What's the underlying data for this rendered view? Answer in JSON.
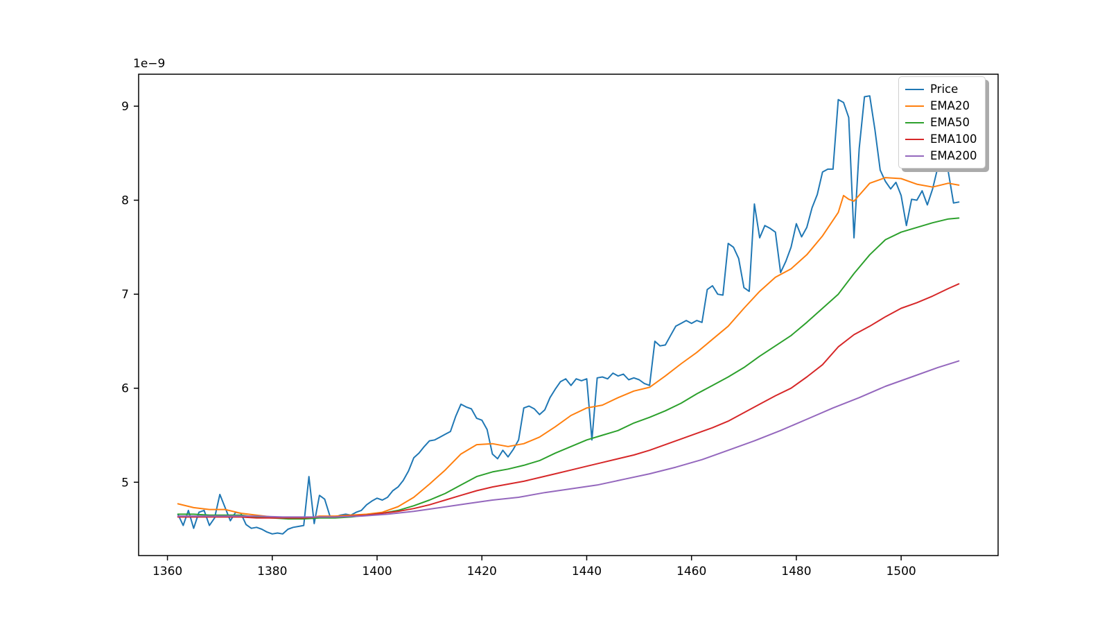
{
  "chart_data": {
    "type": "line",
    "title": "",
    "xlabel": "",
    "ylabel": "",
    "y_offset_text": "1e−9",
    "y_unit_scale": "1e-9",
    "grid": false,
    "xlim": [
      1354.5,
      1518.5
    ],
    "ylim": [
      4.22,
      9.34
    ],
    "xticks": [
      1360,
      1380,
      1400,
      1420,
      1440,
      1460,
      1480,
      1500
    ],
    "yticks": [
      5,
      6,
      7,
      8,
      9
    ],
    "legend": {
      "position": "upper right",
      "shadow": true
    },
    "series": [
      {
        "name": "Price",
        "color": "#1f77b4",
        "x_start": 1362,
        "x_step": 1,
        "y": [
          4.66,
          4.54,
          4.7,
          4.51,
          4.68,
          4.7,
          4.54,
          4.62,
          4.87,
          4.73,
          4.59,
          4.68,
          4.67,
          4.55,
          4.51,
          4.52,
          4.5,
          4.47,
          4.45,
          4.46,
          4.45,
          4.5,
          4.52,
          4.53,
          4.54,
          5.06,
          4.56,
          4.86,
          4.82,
          4.64,
          4.63,
          4.65,
          4.66,
          4.65,
          4.68,
          4.7,
          4.76,
          4.8,
          4.83,
          4.81,
          4.84,
          4.91,
          4.95,
          5.02,
          5.12,
          5.26,
          5.31,
          5.38,
          5.44,
          5.45,
          5.48,
          5.51,
          5.54,
          5.7,
          5.83,
          5.8,
          5.78,
          5.68,
          5.66,
          5.56,
          5.3,
          5.25,
          5.34,
          5.27,
          5.35,
          5.45,
          5.79,
          5.81,
          5.78,
          5.72,
          5.77,
          5.9,
          5.99,
          6.07,
          6.1,
          6.03,
          6.1,
          6.08,
          6.1,
          5.45,
          6.11,
          6.12,
          6.1,
          6.16,
          6.13,
          6.15,
          6.09,
          6.11,
          6.09,
          6.05,
          6.03,
          6.5,
          6.45,
          6.46,
          6.56,
          6.66,
          6.69,
          6.72,
          6.69,
          6.72,
          6.7,
          7.05,
          7.09,
          7.0,
          6.99,
          7.54,
          7.5,
          7.38,
          7.07,
          7.03,
          7.96,
          7.6,
          7.73,
          7.7,
          7.66,
          7.23,
          7.35,
          7.5,
          7.75,
          7.61,
          7.71,
          7.92,
          8.06,
          8.3,
          8.33,
          8.33,
          9.07,
          9.04,
          8.88,
          7.6,
          8.55,
          9.1,
          9.11,
          8.75,
          8.32,
          8.2,
          8.12,
          8.19,
          8.05,
          7.73,
          8.01,
          8.0,
          8.1,
          7.95,
          8.12,
          8.35,
          8.48,
          8.3,
          7.97,
          7.98
        ]
      },
      {
        "name": "EMA20",
        "color": "#ff7f0e",
        "x": [
          1362,
          1365,
          1368,
          1371,
          1374,
          1377,
          1380,
          1383,
          1386,
          1389,
          1392,
          1395,
          1398,
          1401,
          1404,
          1407,
          1410,
          1413,
          1416,
          1419,
          1422,
          1425,
          1428,
          1431,
          1434,
          1437,
          1440,
          1443,
          1446,
          1449,
          1452,
          1455,
          1458,
          1461,
          1464,
          1467,
          1470,
          1473,
          1476,
          1479,
          1482,
          1485,
          1488,
          1489,
          1490,
          1491,
          1494,
          1497,
          1500,
          1503,
          1506,
          1509,
          1511
        ],
        "y": [
          4.77,
          4.73,
          4.71,
          4.71,
          4.67,
          4.65,
          4.63,
          4.61,
          4.61,
          4.64,
          4.64,
          4.65,
          4.66,
          4.68,
          4.74,
          4.84,
          4.98,
          5.13,
          5.3,
          5.4,
          5.41,
          5.38,
          5.41,
          5.48,
          5.59,
          5.71,
          5.79,
          5.82,
          5.9,
          5.97,
          6.01,
          6.13,
          6.26,
          6.38,
          6.52,
          6.66,
          6.85,
          7.03,
          7.18,
          7.27,
          7.42,
          7.62,
          7.87,
          8.05,
          8.01,
          7.99,
          8.18,
          8.24,
          8.23,
          8.17,
          8.14,
          8.18,
          8.16
        ]
      },
      {
        "name": "EMA50",
        "color": "#2ca02c",
        "x": [
          1362,
          1365,
          1368,
          1371,
          1374,
          1377,
          1380,
          1383,
          1386,
          1389,
          1392,
          1395,
          1398,
          1401,
          1404,
          1407,
          1410,
          1413,
          1416,
          1419,
          1422,
          1425,
          1428,
          1431,
          1434,
          1437,
          1440,
          1443,
          1446,
          1449,
          1452,
          1455,
          1458,
          1461,
          1464,
          1467,
          1470,
          1473,
          1476,
          1479,
          1482,
          1485,
          1488,
          1491,
          1494,
          1497,
          1500,
          1503,
          1506,
          1509,
          1511
        ],
        "y": [
          4.66,
          4.66,
          4.65,
          4.65,
          4.65,
          4.63,
          4.62,
          4.61,
          4.61,
          4.62,
          4.62,
          4.63,
          4.65,
          4.67,
          4.7,
          4.75,
          4.81,
          4.88,
          4.97,
          5.06,
          5.11,
          5.14,
          5.18,
          5.23,
          5.31,
          5.38,
          5.45,
          5.5,
          5.55,
          5.63,
          5.69,
          5.76,
          5.84,
          5.94,
          6.03,
          6.12,
          6.22,
          6.34,
          6.45,
          6.56,
          6.7,
          6.85,
          7.0,
          7.22,
          7.42,
          7.58,
          7.66,
          7.71,
          7.76,
          7.8,
          7.81
        ]
      },
      {
        "name": "EMA100",
        "color": "#d62728",
        "x": [
          1362,
          1365,
          1368,
          1371,
          1374,
          1377,
          1380,
          1383,
          1386,
          1389,
          1392,
          1395,
          1398,
          1401,
          1404,
          1407,
          1410,
          1413,
          1416,
          1419,
          1422,
          1425,
          1428,
          1431,
          1434,
          1437,
          1440,
          1443,
          1446,
          1449,
          1452,
          1455,
          1458,
          1461,
          1464,
          1467,
          1470,
          1473,
          1476,
          1479,
          1482,
          1485,
          1488,
          1491,
          1494,
          1497,
          1500,
          1503,
          1506,
          1509,
          1511
        ],
        "y": [
          4.63,
          4.63,
          4.63,
          4.63,
          4.63,
          4.62,
          4.62,
          4.62,
          4.62,
          4.63,
          4.63,
          4.64,
          4.65,
          4.67,
          4.69,
          4.72,
          4.76,
          4.81,
          4.86,
          4.91,
          4.95,
          4.98,
          5.01,
          5.05,
          5.09,
          5.13,
          5.17,
          5.21,
          5.25,
          5.29,
          5.34,
          5.4,
          5.46,
          5.52,
          5.58,
          5.65,
          5.74,
          5.83,
          5.92,
          6.0,
          6.12,
          6.25,
          6.44,
          6.57,
          6.66,
          6.76,
          6.85,
          6.91,
          6.98,
          7.06,
          7.11
        ]
      },
      {
        "name": "EMA200",
        "color": "#9467bd",
        "x": [
          1362,
          1367,
          1372,
          1377,
          1382,
          1387,
          1392,
          1397,
          1402,
          1407,
          1412,
          1417,
          1422,
          1427,
          1432,
          1437,
          1442,
          1447,
          1452,
          1457,
          1462,
          1467,
          1472,
          1477,
          1482,
          1487,
          1492,
          1497,
          1502,
          1507,
          1511
        ],
        "y": [
          4.64,
          4.64,
          4.64,
          4.64,
          4.63,
          4.63,
          4.63,
          4.64,
          4.66,
          4.69,
          4.73,
          4.77,
          4.81,
          4.84,
          4.89,
          4.93,
          4.97,
          5.03,
          5.09,
          5.16,
          5.24,
          5.34,
          5.44,
          5.55,
          5.67,
          5.79,
          5.9,
          6.02,
          6.12,
          6.22,
          6.29
        ]
      }
    ]
  }
}
